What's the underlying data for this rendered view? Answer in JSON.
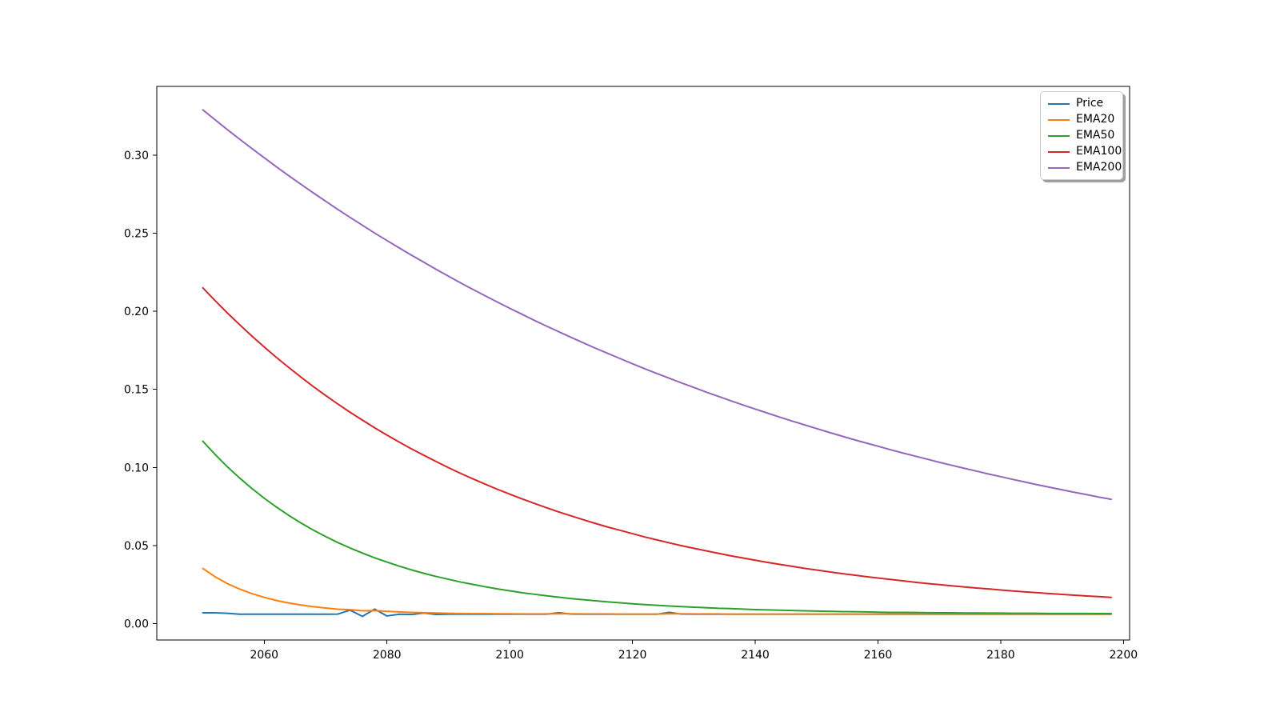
{
  "figure": {
    "background": "#ffffff"
  },
  "axes": {
    "frame_color": "#000000",
    "tick_color": "#000000",
    "tick_label_color": "#000000"
  },
  "chart_data": {
    "type": "line",
    "title": "",
    "xlabel": "",
    "ylabel": "",
    "grid": false,
    "legend_position": "upper right",
    "xlim": [
      2042.5,
      2201.0
    ],
    "ylim": [
      -0.0105,
      0.344
    ],
    "x_ticks": [
      2060,
      2080,
      2100,
      2120,
      2140,
      2160,
      2180,
      2200
    ],
    "x_tick_labels": [
      "2060",
      "2080",
      "2100",
      "2120",
      "2140",
      "2160",
      "2180",
      "2200"
    ],
    "y_ticks": [
      0.0,
      0.05,
      0.1,
      0.15,
      0.2,
      0.25,
      0.3
    ],
    "y_tick_labels": [
      "0.00",
      "0.05",
      "0.10",
      "0.15",
      "0.20",
      "0.25",
      "0.30"
    ],
    "x": [
      2050,
      2052,
      2054,
      2056,
      2058,
      2060,
      2062,
      2064,
      2066,
      2068,
      2070,
      2072,
      2074,
      2076,
      2078,
      2080,
      2082,
      2084,
      2086,
      2088,
      2090,
      2092,
      2094,
      2096,
      2098,
      2100,
      2102,
      2104,
      2106,
      2108,
      2110,
      2112,
      2114,
      2116,
      2118,
      2120,
      2122,
      2124,
      2126,
      2128,
      2130,
      2132,
      2134,
      2136,
      2138,
      2140,
      2142,
      2144,
      2146,
      2148,
      2150,
      2152,
      2154,
      2156,
      2158,
      2160,
      2162,
      2164,
      2166,
      2168,
      2170,
      2172,
      2174,
      2176,
      2178,
      2180,
      2182,
      2184,
      2186,
      2188,
      2190,
      2192,
      2194,
      2196,
      2198
    ],
    "series": [
      {
        "name": "Price",
        "color": "#1f77b4",
        "values": [
          0.0069,
          0.0069,
          0.0066,
          0.006,
          0.006,
          0.006,
          0.006,
          0.006,
          0.006,
          0.006,
          0.006,
          0.0061,
          0.0086,
          0.0046,
          0.0093,
          0.0049,
          0.006,
          0.0058,
          0.0068,
          0.0059,
          0.006,
          0.006,
          0.006,
          0.006,
          0.006,
          0.006,
          0.006,
          0.006,
          0.006,
          0.007,
          0.0061,
          0.006,
          0.006,
          0.006,
          0.006,
          0.006,
          0.006,
          0.006,
          0.0072,
          0.0061,
          0.006,
          0.006,
          0.006,
          0.006,
          0.006,
          0.006,
          0.006,
          0.006,
          0.006,
          0.006,
          0.006,
          0.006,
          0.006,
          0.006,
          0.006,
          0.006,
          0.006,
          0.006,
          0.006,
          0.006,
          0.006,
          0.006,
          0.006,
          0.006,
          0.006,
          0.006,
          0.006,
          0.006,
          0.006,
          0.006,
          0.006,
          0.006,
          0.006,
          0.006,
          0.006
        ]
      },
      {
        "name": "EMA20",
        "color": "#ff7f0e",
        "values": [
          0.0353,
          0.03,
          0.0256,
          0.0221,
          0.0192,
          0.0168,
          0.0148,
          0.0132,
          0.0119,
          0.0108,
          0.01,
          0.0092,
          0.0089,
          0.0082,
          0.0083,
          0.0079,
          0.0075,
          0.0072,
          0.007,
          0.0068,
          0.0066,
          0.0065,
          0.0064,
          0.0064,
          0.0063,
          0.0063,
          0.0062,
          0.0062,
          0.0062,
          0.0063,
          0.0063,
          0.0062,
          0.0062,
          0.0062,
          0.0061,
          0.0061,
          0.0061,
          0.0061,
          0.0063,
          0.0063,
          0.0062,
          0.0062,
          0.0062,
          0.0061,
          0.0061,
          0.0061,
          0.0061,
          0.0061,
          0.0061,
          0.0061,
          0.0061,
          0.0061,
          0.0061,
          0.0061,
          0.0061,
          0.0061,
          0.0061,
          0.0061,
          0.0061,
          0.0061,
          0.0061,
          0.0061,
          0.0061,
          0.0061,
          0.0061,
          0.0061,
          0.0061,
          0.0061,
          0.0061,
          0.0061,
          0.0061,
          0.0061,
          0.0061,
          0.0061,
          0.0061
        ]
      },
      {
        "name": "EMA50",
        "color": "#2ca02c",
        "values": [
          0.1168,
          0.1083,
          0.1004,
          0.0932,
          0.0865,
          0.0803,
          0.0746,
          0.0693,
          0.0644,
          0.0599,
          0.0558,
          0.0519,
          0.0484,
          0.0452,
          0.0421,
          0.0394,
          0.0368,
          0.0344,
          0.0322,
          0.0302,
          0.0284,
          0.0266,
          0.0251,
          0.0236,
          0.0222,
          0.021,
          0.0198,
          0.0188,
          0.0178,
          0.0169,
          0.016,
          0.0153,
          0.0146,
          0.0139,
          0.0133,
          0.0127,
          0.0122,
          0.0117,
          0.0113,
          0.0109,
          0.0105,
          0.0102,
          0.0098,
          0.0096,
          0.0093,
          0.009,
          0.0088,
          0.0086,
          0.0084,
          0.0082,
          0.008,
          0.0079,
          0.0077,
          0.0076,
          0.0075,
          0.0073,
          0.0072,
          0.0072,
          0.0071,
          0.007,
          0.0069,
          0.0069,
          0.0068,
          0.0068,
          0.0067,
          0.0067,
          0.0066,
          0.0066,
          0.0066,
          0.0065,
          0.0065,
          0.0065,
          0.0065,
          0.0064,
          0.0064
        ]
      },
      {
        "name": "EMA100",
        "color": "#d62728",
        "values": [
          0.215,
          0.2068,
          0.1989,
          0.1914,
          0.1841,
          0.1771,
          0.1704,
          0.164,
          0.1578,
          0.1518,
          0.1461,
          0.1406,
          0.1353,
          0.1303,
          0.1254,
          0.1207,
          0.1162,
          0.1119,
          0.1078,
          0.1038,
          0.0999,
          0.0962,
          0.0927,
          0.0893,
          0.086,
          0.0829,
          0.0799,
          0.077,
          0.0742,
          0.0715,
          0.069,
          0.0665,
          0.0641,
          0.0618,
          0.0597,
          0.0576,
          0.0555,
          0.0536,
          0.0517,
          0.0499,
          0.0482,
          0.0466,
          0.045,
          0.0434,
          0.042,
          0.0406,
          0.0392,
          0.0379,
          0.0367,
          0.0354,
          0.0343,
          0.0332,
          0.0321,
          0.0311,
          0.0301,
          0.0292,
          0.0283,
          0.0274,
          0.0265,
          0.0257,
          0.025,
          0.0242,
          0.0235,
          0.0228,
          0.0222,
          0.0215,
          0.0209,
          0.0203,
          0.0198,
          0.0192,
          0.0187,
          0.0182,
          0.0177,
          0.0173,
          0.0168
        ]
      },
      {
        "name": "EMA200",
        "color": "#9467bd",
        "values": [
          0.329,
          0.3226,
          0.3163,
          0.3102,
          0.3042,
          0.2983,
          0.2925,
          0.2868,
          0.2813,
          0.2758,
          0.2705,
          0.2652,
          0.2601,
          0.2551,
          0.2501,
          0.2453,
          0.2406,
          0.2359,
          0.2314,
          0.2269,
          0.2225,
          0.2182,
          0.214,
          0.2099,
          0.2059,
          0.2019,
          0.1981,
          0.1942,
          0.1905,
          0.1869,
          0.1833,
          0.1798,
          0.1763,
          0.173,
          0.1697,
          0.1664,
          0.1632,
          0.1601,
          0.1571,
          0.1541,
          0.1512,
          0.1483,
          0.1455,
          0.1427,
          0.14,
          0.1374,
          0.1348,
          0.1322,
          0.1297,
          0.1273,
          0.1249,
          0.1225,
          0.1202,
          0.1179,
          0.1157,
          0.1136,
          0.1114,
          0.1093,
          0.1073,
          0.1053,
          0.1033,
          0.1014,
          0.0995,
          0.0977,
          0.0958,
          0.0941,
          0.0923,
          0.0906,
          0.0889,
          0.0873,
          0.0857,
          0.0841,
          0.0826,
          0.081,
          0.0796
        ]
      }
    ]
  }
}
